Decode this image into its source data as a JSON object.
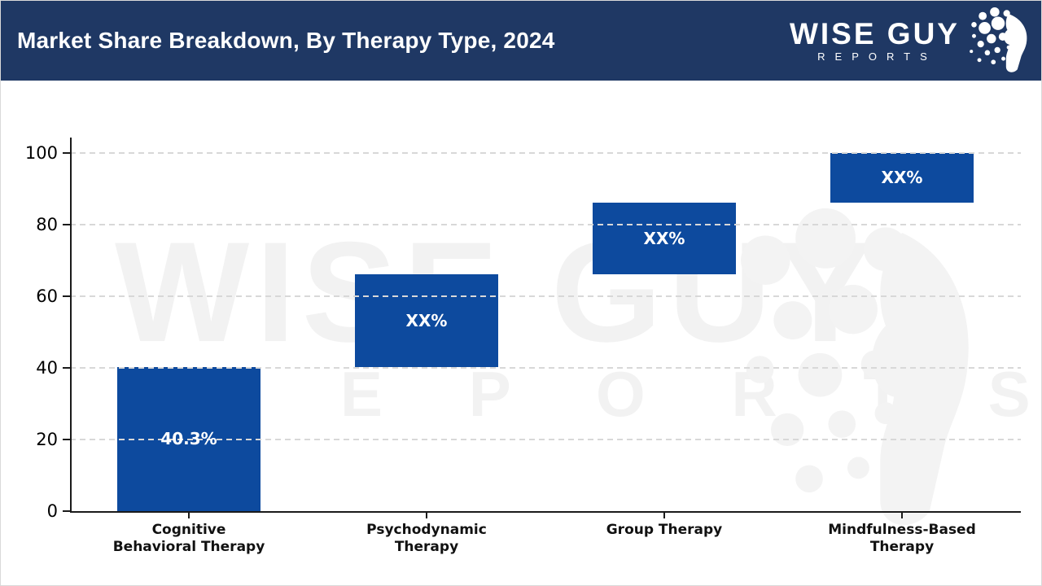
{
  "header": {
    "title": "Market Share Breakdown, By Therapy Type, 2024",
    "bg_color": "#1f3864",
    "logo": {
      "wordmark": "WISE GUY",
      "subtitle": "REPORTS"
    }
  },
  "watermark": {
    "line1": "WISE GUY",
    "line2": "R E P O R T S"
  },
  "chart_data": {
    "type": "bar",
    "subtype": "waterfall",
    "title": "Market Share Breakdown, By Therapy Type, 2024",
    "categories": [
      [
        "Cognitive",
        "Behavioral Therapy"
      ],
      [
        "Psychodynamic",
        "Therapy"
      ],
      [
        "Group Therapy"
      ],
      [
        "Mindfulness-Based",
        "Therapy"
      ]
    ],
    "segments": [
      {
        "start": 0,
        "end": 40.3,
        "label": "40.3%"
      },
      {
        "start": 40.3,
        "end": 66.2,
        "label": "XX%"
      },
      {
        "start": 66.2,
        "end": 86.2,
        "label": "XX%"
      },
      {
        "start": 86.2,
        "end": 100,
        "label": "XX%"
      }
    ],
    "yticks": [
      0,
      20,
      40,
      60,
      80,
      100
    ],
    "ylim": [
      0,
      100
    ],
    "xlabel": "",
    "ylabel": "",
    "bar_color": "#0d4a9e",
    "grid": true,
    "gridline_style": "dashed",
    "legend": false
  }
}
